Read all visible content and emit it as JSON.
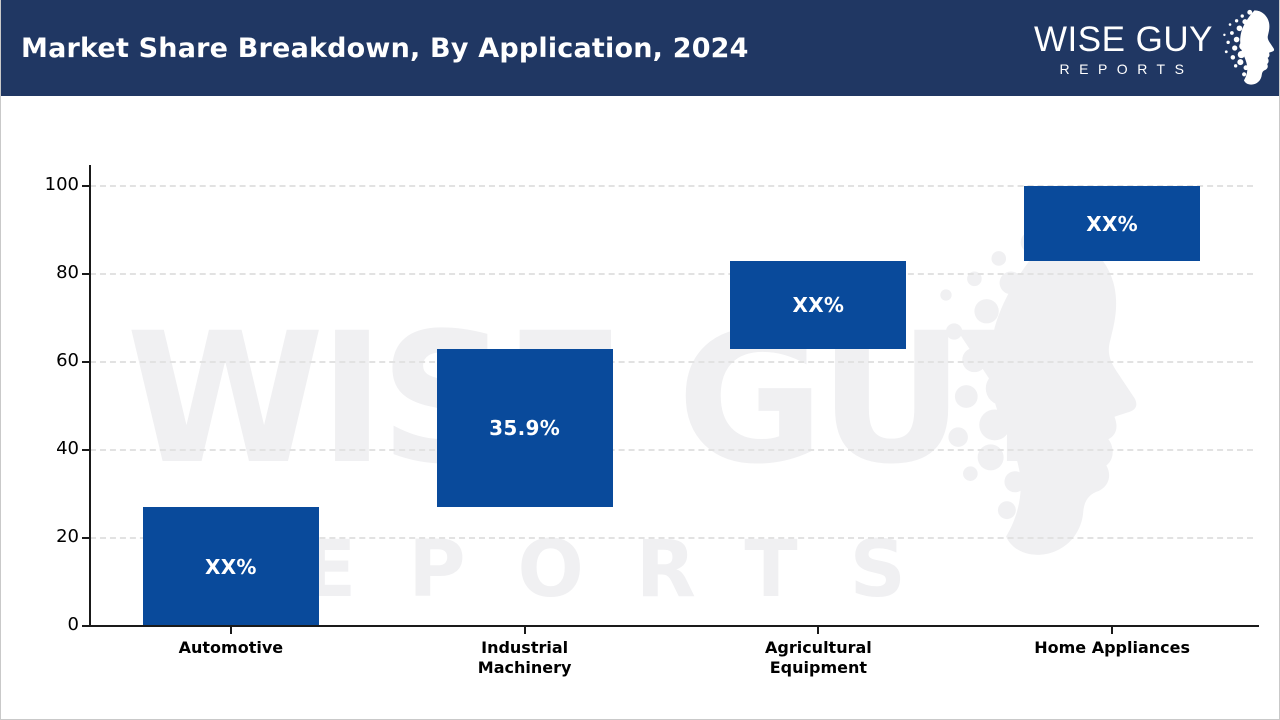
{
  "header": {
    "title": "Market Share Breakdown, By Application, 2024",
    "bg_color": "#203763",
    "logo": {
      "line1": "WISE GUY",
      "line2": "REPORTS"
    }
  },
  "watermark": {
    "line1": "WISE GUY",
    "line2": "REPORTS"
  },
  "chart_data": {
    "type": "bar",
    "subtype": "waterfall-stacked-breakdown",
    "title": "Market Share Breakdown, By Application, 2024",
    "categories": [
      "Automotive",
      "Industrial\nMachinery",
      "Agricultural\nEquipment",
      "Home Appliances"
    ],
    "segments": [
      {
        "category": "Automotive",
        "start": 0,
        "end": 27,
        "label": "XX%"
      },
      {
        "category": "Industrial Machinery",
        "start": 27,
        "end": 62.9,
        "label": "35.9%"
      },
      {
        "category": "Agricultural Equipment",
        "start": 62.9,
        "end": 82.9,
        "label": "XX%"
      },
      {
        "category": "Home Appliances",
        "start": 82.9,
        "end": 100,
        "label": "XX%"
      }
    ],
    "y_ticks": [
      "0",
      "20",
      "40",
      "60",
      "80",
      "100"
    ],
    "ylim": [
      0,
      100
    ],
    "xlabel": "",
    "ylabel": "",
    "grid": "horizontal-dashed",
    "legend": "none",
    "bar_color": "#094a9b",
    "bar_label_color": "#ffffff"
  }
}
